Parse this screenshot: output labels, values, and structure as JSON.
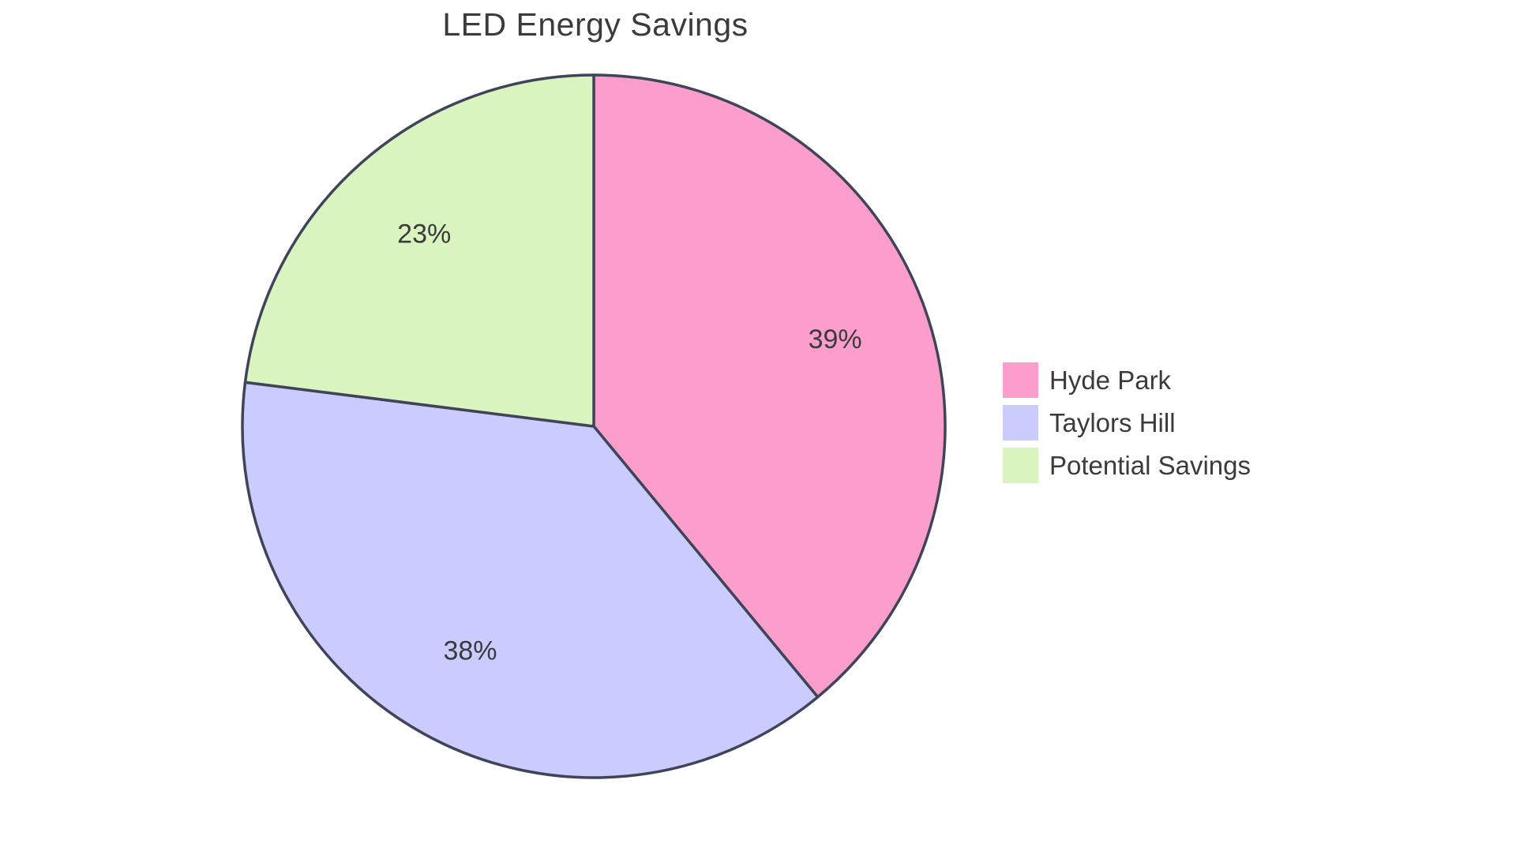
{
  "chart": {
    "title": "LED Energy Savings"
  },
  "chart_data": {
    "type": "pie",
    "title": "LED Energy Savings",
    "categories": [
      "Hyde Park",
      "Taylors Hill",
      "Potential Savings"
    ],
    "values": [
      39,
      38,
      23
    ],
    "slices": [
      {
        "label": "Hyde Park",
        "value": 39,
        "percent_label": "39%",
        "color": "#FB9ECB"
      },
      {
        "label": "Taylors Hill",
        "value": 38,
        "percent_label": "38%",
        "color": "#C9CCFC"
      },
      {
        "label": "Potential Savings",
        "value": 23,
        "percent_label": "23%",
        "color": "#D9F4BE"
      }
    ],
    "start_position": "top",
    "direction": "clockwise",
    "outline_color": "#3F4459",
    "label_color": "#3b3b3e",
    "legend_position": "right",
    "legend_entries": [
      "Hyde Park",
      "Taylors Hill",
      "Potential Savings"
    ]
  }
}
